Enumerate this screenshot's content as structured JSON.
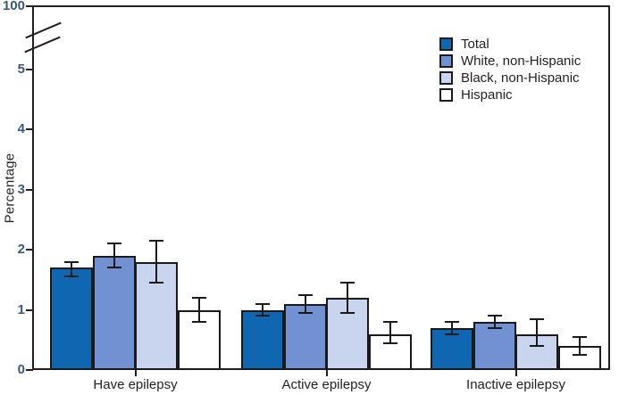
{
  "chart_data": {
    "type": "bar",
    "title": "",
    "xlabel": "",
    "ylabel": "Percentage",
    "categories": [
      "Have epilepsy",
      "Active epilepsy",
      "Inactive epilepsy"
    ],
    "series": [
      {
        "name": "Total",
        "color": "#0f67b1",
        "values": [
          1.7,
          1.0,
          0.7
        ],
        "ci": [
          [
            1.55,
            1.8
          ],
          [
            0.9,
            1.1
          ],
          [
            0.6,
            0.8
          ]
        ]
      },
      {
        "name": "White, non-Hispanic",
        "color": "#7291d3",
        "values": [
          1.9,
          1.1,
          0.8
        ],
        "ci": [
          [
            1.7,
            2.1
          ],
          [
            0.95,
            1.25
          ],
          [
            0.7,
            0.9
          ]
        ]
      },
      {
        "name": "Black, non-Hispanic",
        "color": "#c9d4ee",
        "values": [
          1.8,
          1.2,
          0.6
        ],
        "ci": [
          [
            1.45,
            2.15
          ],
          [
            0.95,
            1.45
          ],
          [
            0.4,
            0.85
          ]
        ]
      },
      {
        "name": "Hispanic",
        "color": "#ffffff",
        "values": [
          1.0,
          0.6,
          0.4
        ],
        "ci": [
          [
            0.8,
            1.2
          ],
          [
            0.45,
            0.8
          ],
          [
            0.25,
            0.55
          ]
        ]
      }
    ],
    "y_axis": {
      "ticks": [
        {
          "label": "100",
          "value": 100
        },
        {
          "label": "5",
          "value": 5
        },
        {
          "label": "4",
          "value": 4
        },
        {
          "label": "3",
          "value": 3
        },
        {
          "label": "2",
          "value": 2
        },
        {
          "label": "1",
          "value": 1
        },
        {
          "label": "0",
          "value": 0
        }
      ],
      "axis_break_between": [
        5,
        100
      ],
      "visible_range": [
        0,
        5
      ]
    },
    "legend_position": "top-right",
    "grid": false,
    "error_bars": true
  },
  "colors": {
    "frame": "#231f20",
    "tick_label": "#3a5780",
    "text": "#231f20"
  }
}
